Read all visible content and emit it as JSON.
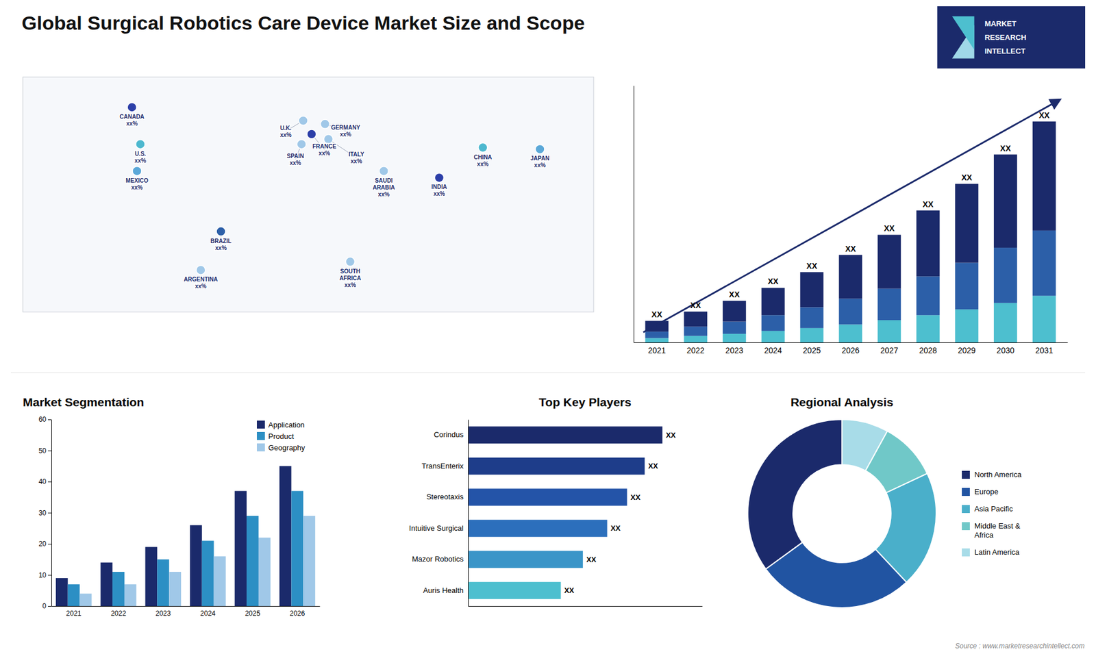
{
  "title": "Global Surgical Robotics Care Device Market Size and Scope",
  "annotations": [
    "Source : www.marketresearchintellect.com",
    "MARKET",
    "RESEARCH",
    "INTELLECT"
  ],
  "chart_data": [
    {
      "type": "map",
      "categories": [
        "CANADA\nxx%",
        "U.S.\nxx%",
        "MEXICO\nxx%",
        "BRAZIL\nxx%",
        "ARGENTINA\nxx%",
        "U.K.\nxx%",
        "FRANCE\nxx%",
        "SPAIN\nxx%",
        "GERMANY\nxx%",
        "ITALY\nxx%",
        "SAUDI\nARABIA\nxx%",
        "SOUTH\nAFRICA\nxx%",
        "CHINA\nxx%",
        "INDIA\nxx%",
        "JAPAN\nxx%"
      ],
      "x": [
        -105,
        -100,
        -102,
        -52,
        -64,
        -3,
        2,
        -4,
        10,
        12,
        45,
        25,
        104,
        78,
        138
      ],
      "y": [
        62,
        40,
        24,
        -12,
        -35,
        54,
        46,
        40,
        52,
        43,
        24,
        -30,
        38,
        20,
        37
      ],
      "colors": [
        "#2c3fa8",
        "#4db8cf",
        "#5ba8d8",
        "#2c5fa8",
        "#a0c8e8",
        "#a0c8e8",
        "#2c3fa8",
        "#a0c8e8",
        "#a0c8e8",
        "#a0c8e8",
        "#a0c8e8",
        "#a0c8e8",
        "#4db8cf",
        "#2c3fa8",
        "#5ba8d8"
      ],
      "xlim": [
        -170,
        170
      ],
      "ylim": [
        -60,
        80
      ],
      "tick_labels": false
    },
    {
      "type": "bar",
      "stacked": true,
      "categories": [
        "2021",
        "2022",
        "2023",
        "2024",
        "2025",
        "2026",
        "2027",
        "2028",
        "2029",
        "2030",
        "2031"
      ],
      "series": [
        {
          "color": "#4dbfcf",
          "values": [
            0.6,
            0.9,
            1.2,
            1.6,
            2.0,
            2.5,
            3.1,
            3.8,
            4.6,
            5.5,
            6.5
          ]
        },
        {
          "color": "#2c5fa8",
          "values": [
            0.9,
            1.3,
            1.7,
            2.2,
            2.9,
            3.6,
            4.4,
            5.4,
            6.5,
            7.7,
            9.1
          ]
        },
        {
          "color": "#1b2a6b",
          "values": [
            1.5,
            2.1,
            2.9,
            3.8,
            4.9,
            6.1,
            7.5,
            9.2,
            11.0,
            13.0,
            15.2
          ]
        }
      ],
      "ylim": [
        0,
        35.8
      ],
      "yticks": [],
      "tick_labels": "x",
      "grid": false,
      "annotations": [
        "XX",
        "XX",
        "XX",
        "XX",
        "XX",
        "XX",
        "XX",
        "XX",
        "XX",
        "XX",
        "XX"
      ]
    },
    {
      "type": "bar",
      "title": "Market Segmentation",
      "categories": [
        "2021",
        "2022",
        "2023",
        "2024",
        "2025",
        "2026"
      ],
      "series": [
        {
          "name": "Application",
          "color": "#1b2a6b",
          "values": [
            9,
            14,
            19,
            26,
            37,
            45
          ]
        },
        {
          "name": "Product",
          "color": "#2c8fc4",
          "values": [
            7,
            11,
            15,
            21,
            29,
            37
          ]
        },
        {
          "name": "Geography",
          "color": "#a0c8e8",
          "values": [
            4,
            7,
            11,
            16,
            22,
            29
          ]
        }
      ],
      "ylim": [
        0,
        60
      ],
      "yticks": [
        0,
        10,
        20,
        30,
        40,
        50,
        60
      ],
      "grid": false,
      "legend": "upper right"
    },
    {
      "type": "bar",
      "title": "Top Key Players",
      "orientation": "horizontal",
      "categories": [
        "Corindus",
        "TransEnterix",
        "Stereotaxis",
        "Intuitive Surgical",
        "Mazor Robotics",
        "Auris Health"
      ],
      "values": [
        88,
        80,
        72,
        63,
        52,
        42
      ],
      "colors": [
        "#1b2a6b",
        "#1e3d8a",
        "#2454a8",
        "#2c6fbc",
        "#3a95c8",
        "#4dbfcf"
      ],
      "xlim": [
        0,
        106
      ],
      "xticks": [],
      "tick_labels": "y",
      "grid": false,
      "annotations": [
        "XX",
        "XX",
        "XX",
        "XX",
        "XX",
        "XX"
      ]
    },
    {
      "type": "donut",
      "title": "Regional Analysis",
      "categories": [
        "Latin America",
        "Middle East &\nAfrica",
        "Asia Pacific",
        "Europe",
        "North America"
      ],
      "values": [
        8,
        10,
        20,
        27,
        35
      ],
      "colors": [
        "#a8dce8",
        "#70c8c8",
        "#4aafca",
        "#2154a2",
        "#1b2a6b"
      ],
      "legend": "right"
    }
  ]
}
